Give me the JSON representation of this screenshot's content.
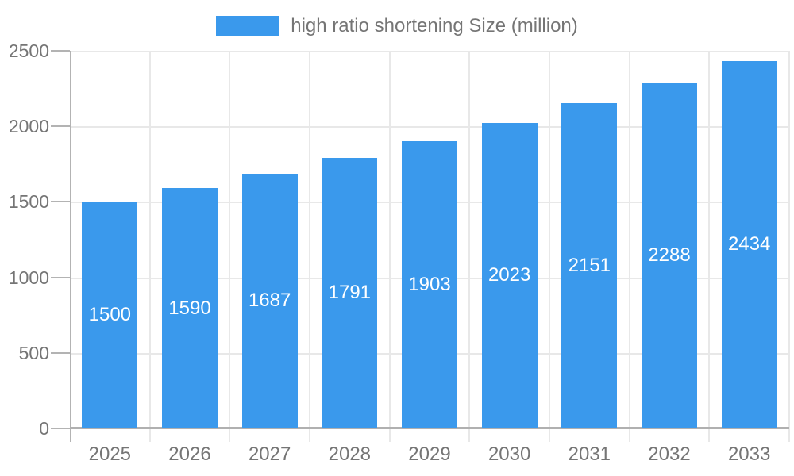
{
  "chart_data": {
    "type": "bar",
    "title": "",
    "legend": "high ratio shortening Size (million)",
    "legend_position": "top",
    "categories": [
      "2025",
      "2026",
      "2027",
      "2028",
      "2029",
      "2030",
      "2031",
      "2032",
      "2033"
    ],
    "values": [
      1500,
      1590,
      1687,
      1791,
      1903,
      2023,
      2151,
      2288,
      2434
    ],
    "xlabel": "",
    "ylabel": "",
    "ylim": [
      0,
      2500
    ],
    "yticks": [
      0,
      500,
      1000,
      1500,
      2000,
      2500
    ],
    "grid": true,
    "bar_labels": "white, centered inside bars"
  },
  "colors": {
    "bar": "#3a99ec",
    "grid": "#e8e8e8",
    "axis": "#b3b3b3",
    "baseline": "#b0b0b0",
    "tick_text": "#757575",
    "bar_label_text": "#ffffff"
  }
}
